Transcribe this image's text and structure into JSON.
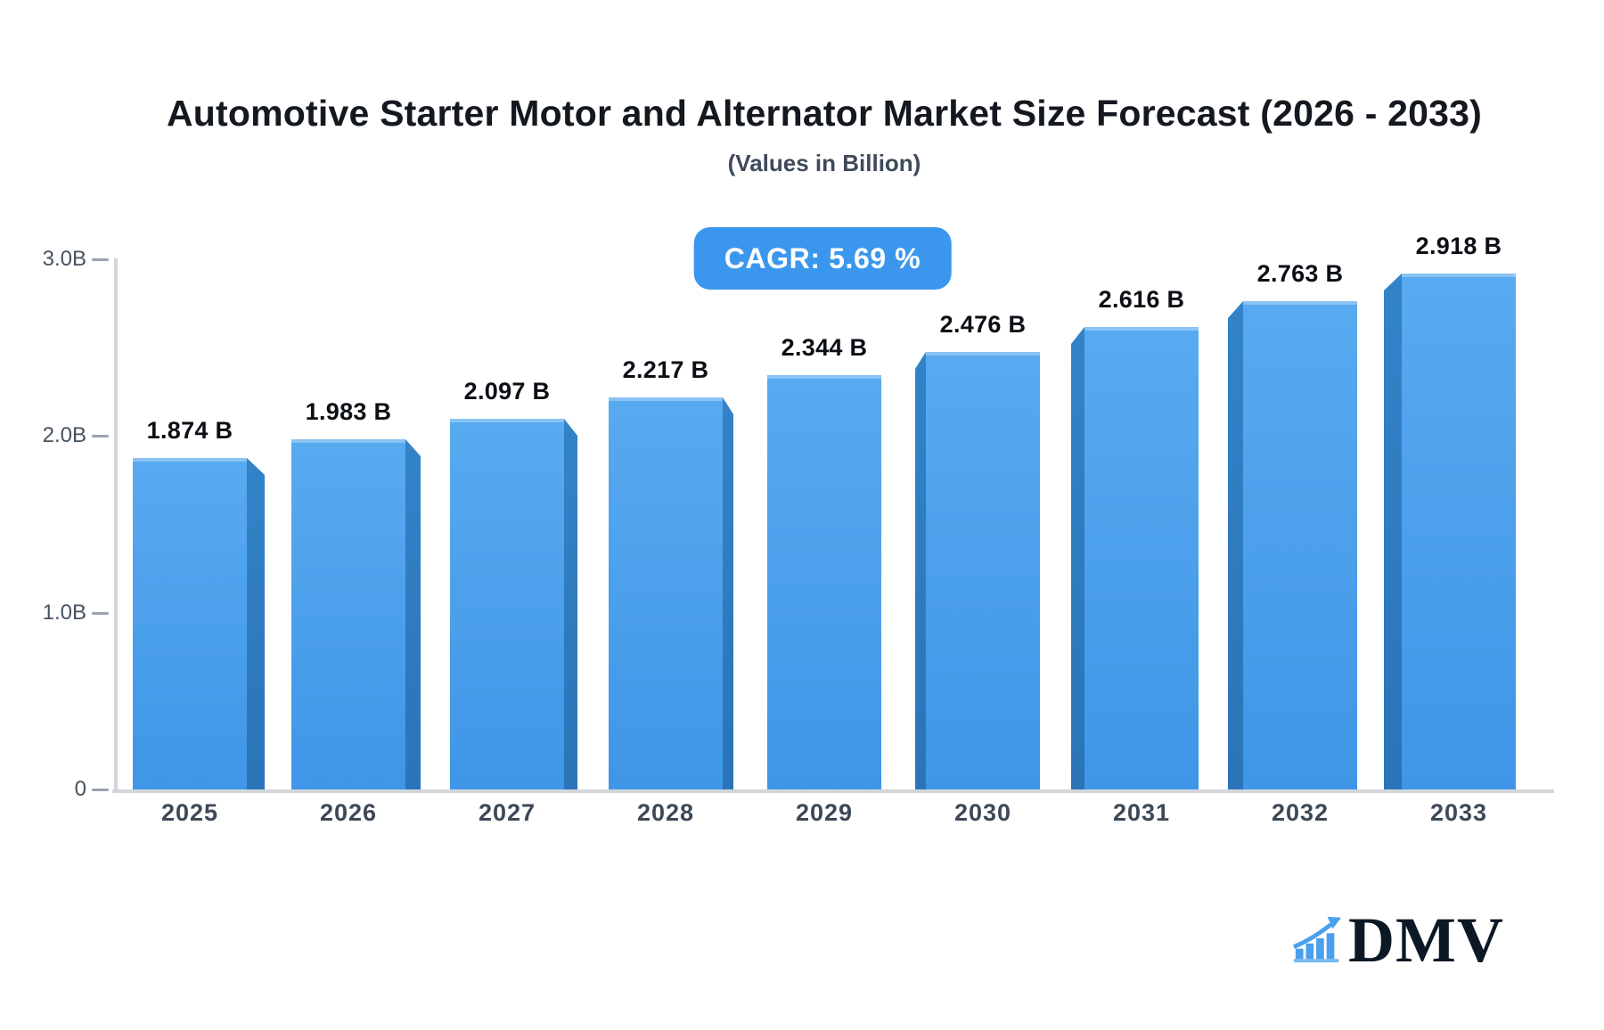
{
  "chart_data": {
    "type": "bar",
    "title": "Automotive Starter Motor and Alternator Market Size Forecast (2026 - 2033)",
    "subtitle": "(Values in Billion)",
    "annotation": "CAGR: 5.69 %",
    "categories": [
      "2025",
      "2026",
      "2027",
      "2028",
      "2029",
      "2030",
      "2031",
      "2032",
      "2033"
    ],
    "values": [
      1.874,
      1.983,
      2.097,
      2.217,
      2.344,
      2.476,
      2.616,
      2.763,
      2.918
    ],
    "value_labels": [
      "1.874 B",
      "1.983 B",
      "2.097 B",
      "2.217 B",
      "2.344 B",
      "2.476 B",
      "2.616 B",
      "2.763 B",
      "2.918 B"
    ],
    "xlabel": "",
    "ylabel": "",
    "ylim": [
      0,
      3.0
    ],
    "y_ticks": [
      {
        "value": 3.0,
        "label": "3.0B"
      },
      {
        "value": 2.0,
        "label": "2.0B"
      },
      {
        "value": 1.0,
        "label": "1.0B"
      },
      {
        "value": 0,
        "label": "0"
      }
    ],
    "grid": false,
    "legend": false,
    "bar_style": "3d-beveled",
    "colors": {
      "bar_top": "#58aaf0",
      "bar_bottom": "#3f96e7",
      "bar_side_top": "#3383c8",
      "bar_side_bottom": "#2b74b8",
      "axis": "#d2d6db",
      "tick_dash": "#9aa2ad",
      "tick_text": "#47525f",
      "category_text": "#3d4857",
      "value_text": "#0b0f15",
      "badge_bg": "#3b97ed",
      "badge_text": "#ffffff"
    }
  },
  "logo": {
    "text": "DMV",
    "icon": "growth-chart-icon",
    "text_color": "#0d1826",
    "icon_color": "#4aa0ed"
  }
}
